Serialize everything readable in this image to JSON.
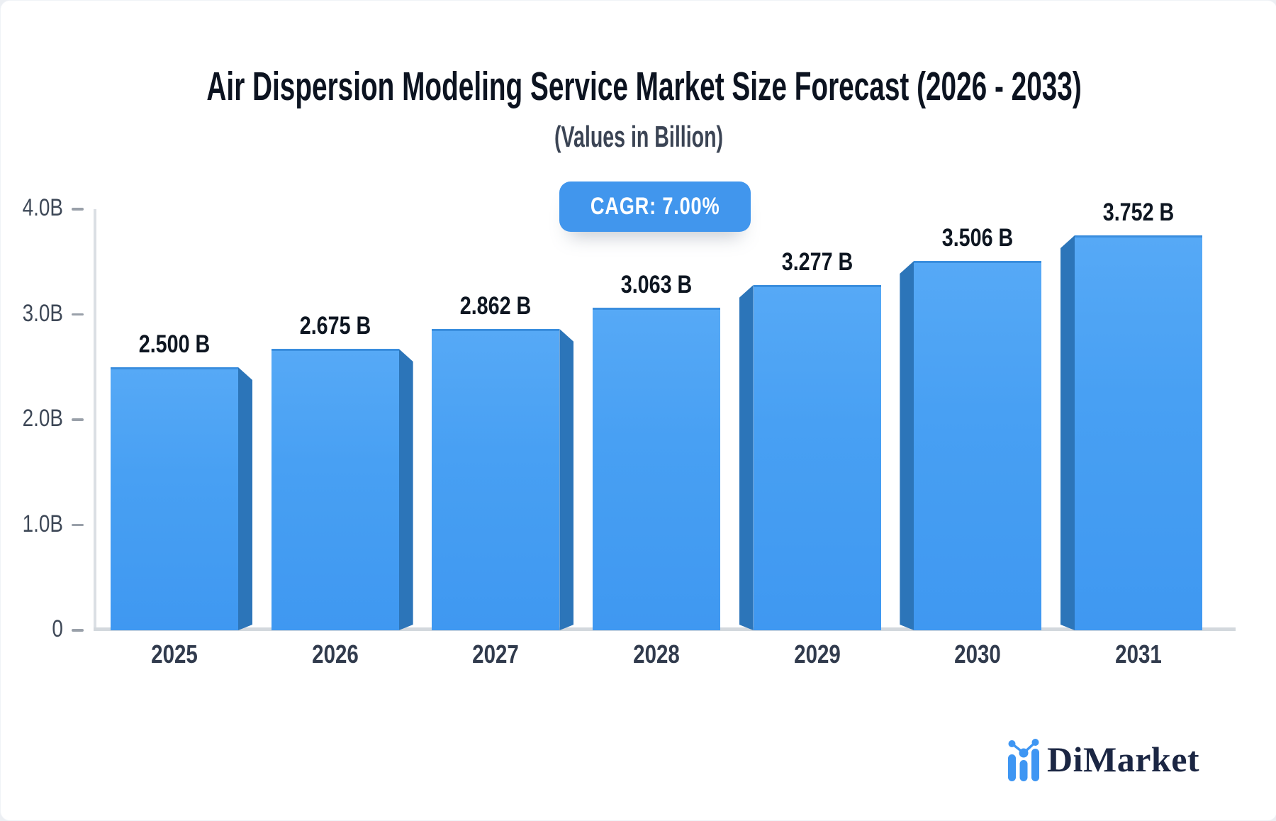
{
  "title": "Air Dispersion Modeling Service Market Size Forecast (2026 - 2033)",
  "subtitle": "(Values in Billion)",
  "cagr_badge": "CAGR: 7.00%",
  "chart_data": {
    "type": "bar",
    "title": "Air Dispersion Modeling Service Market Size Forecast (2026 - 2033)",
    "subtitle": "(Values in Billion)",
    "xlabel": "",
    "ylabel": "",
    "unit": "Billion",
    "cagr_percent": 7.0,
    "categories": [
      "2025",
      "2026",
      "2027",
      "2028",
      "2029",
      "2030",
      "2031"
    ],
    "values": [
      2.5,
      2.675,
      2.862,
      3.063,
      3.277,
      3.506,
      3.752
    ],
    "bar_labels": [
      "2.500 B",
      "2.675 B",
      "2.862 B",
      "3.063 B",
      "3.277 B",
      "3.506 B",
      "3.752 B"
    ],
    "ylim": [
      0,
      4.0
    ],
    "yticks": [
      {
        "label": "4.0B",
        "value": 4.0
      },
      {
        "label": "3.0B",
        "value": 3.0
      },
      {
        "label": "2.0B",
        "value": 2.0
      },
      {
        "label": "1.0B",
        "value": 1.0
      },
      {
        "label": "0",
        "value": 0.0
      }
    ],
    "grid": false,
    "legend": false,
    "colors": {
      "bar_face": "#48a0f3",
      "bar_side_3d": "#2c75b9",
      "axis_line": "#d8dce1",
      "tick_dash": "#99a0a9",
      "value_label": "#0e1621",
      "year_label": "#313b4d",
      "badge_background": "#4196ed",
      "badge_text": "#ffffff"
    }
  },
  "footer": {
    "logo_text": "DiMarket",
    "logo_icon": "bar-chart-logo-icon",
    "logo_color": "#3e96f3",
    "logo_text_color": "#1b2643"
  }
}
